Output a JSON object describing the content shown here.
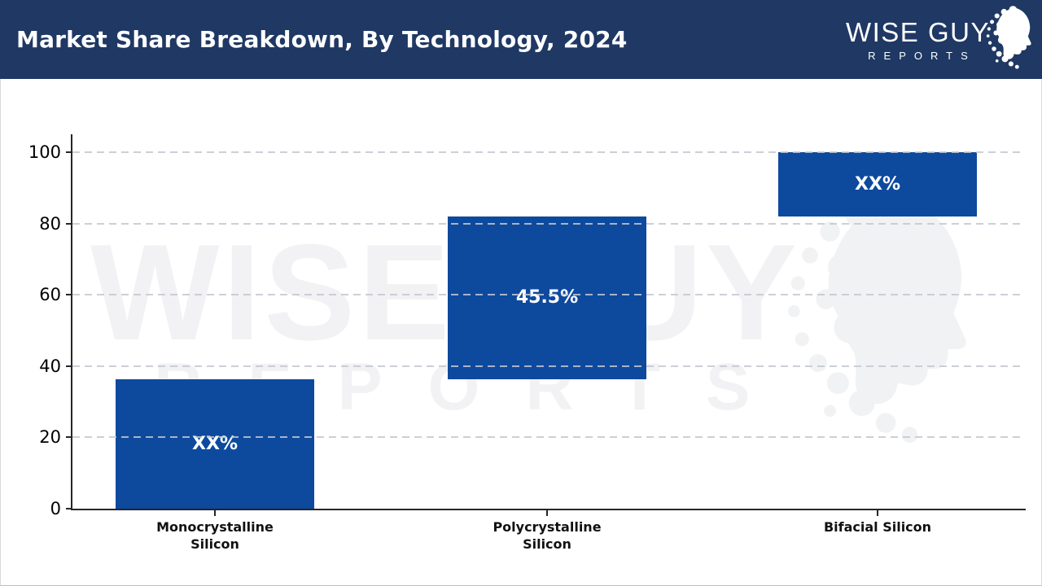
{
  "header": {
    "background_color": "#1f3864",
    "title": "Market Share Breakdown, By Technology, 2024",
    "logo": {
      "name": "WISE GUY",
      "subtitle": "REPORTS"
    }
  },
  "watermark": {
    "line1": "WISE GUY",
    "line2": "REPORTS"
  },
  "chart_data": {
    "type": "bar",
    "subtype": "floating-waterfall-breakdown",
    "title": "Market Share Breakdown, By Technology, 2024",
    "categories": [
      "Monocrystalline Silicon",
      "Polycrystalline Silicon",
      "Bifacial Silicon"
    ],
    "categories_lines": [
      [
        "Monocrystalline",
        "Silicon"
      ],
      [
        "Polycrystalline",
        "Silicon"
      ],
      [
        "Bifacial Silicon",
        ""
      ]
    ],
    "bars": [
      {
        "category": "Monocrystalline Silicon",
        "base": 0,
        "value": 36.4,
        "top": 36.4,
        "label": "XX%"
      },
      {
        "category": "Polycrystalline Silicon",
        "base": 36.4,
        "value": 45.5,
        "top": 81.9,
        "label": "45.5%"
      },
      {
        "category": "Bifacial Silicon",
        "base": 81.9,
        "value": 18.1,
        "top": 100,
        "label": "XX%"
      }
    ],
    "xlabel": "",
    "ylabel": "",
    "ylim": [
      0,
      100
    ],
    "yticks": [
      0,
      20,
      40,
      60,
      80,
      100
    ],
    "bar_color": "#0d4a9e",
    "grid": {
      "axis": "y",
      "style": "dashed",
      "color": "#d9d9d9",
      "drawn_over_bars": true
    }
  }
}
